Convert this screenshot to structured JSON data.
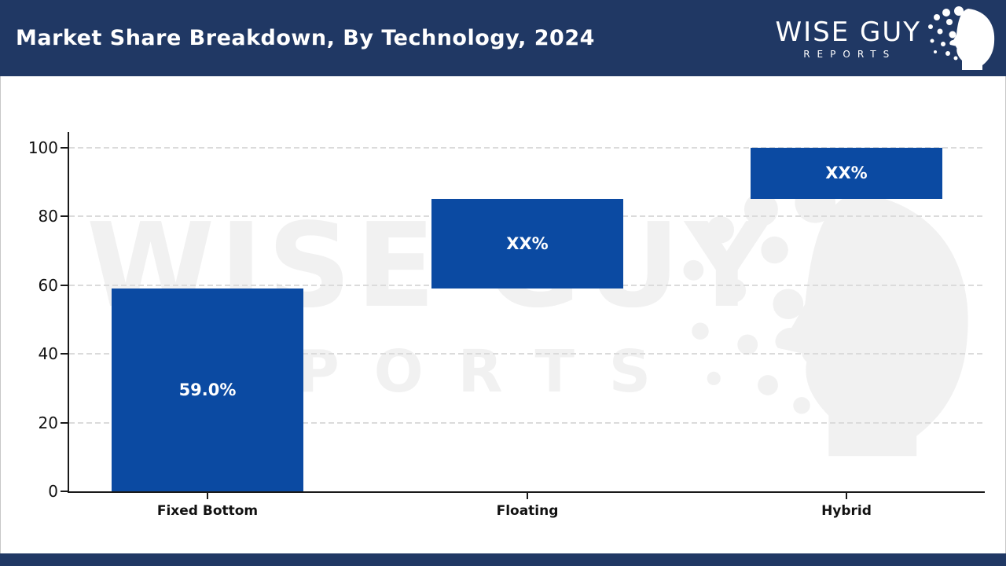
{
  "header": {
    "title": "Market Share Breakdown, By Technology, 2024",
    "logo": {
      "brand_line1": "WISE GUY",
      "brand_line2": "REPORTS"
    }
  },
  "watermark": {
    "line1": "WISE GUY",
    "line2": "REPORTS"
  },
  "colors": {
    "header_bg": "#203864",
    "footer_bg": "#203864",
    "bar_fill": "#0B4AA2",
    "bar_label_text": "#FFFFFF",
    "grid_line": "#DBDBDB",
    "axis_line": "#1A1A1A",
    "tick_label": "#111111",
    "watermark": "#F1F1F1",
    "chart_bg": "#FFFFFF"
  },
  "chart_data": {
    "type": "bar",
    "subtype": "waterfall-segments",
    "title": "Market Share Breakdown, By Technology, 2024",
    "categories": [
      "Fixed Bottom",
      "Floating",
      "Hybrid"
    ],
    "segments": [
      {
        "category": "Fixed Bottom",
        "start": 0,
        "end": 59,
        "label": "59.0%"
      },
      {
        "category": "Floating",
        "start": 59,
        "end": 85,
        "label": "XX%"
      },
      {
        "category": "Hybrid",
        "start": 85,
        "end": 100,
        "label": "XX%"
      }
    ],
    "xlabel": "",
    "ylabel": "",
    "ylim": [
      0,
      100
    ],
    "yticks": [
      0,
      20,
      40,
      60,
      80,
      100
    ],
    "grid": "horizontal dashed",
    "legend": false,
    "value_labels_inside_bars": true
  }
}
